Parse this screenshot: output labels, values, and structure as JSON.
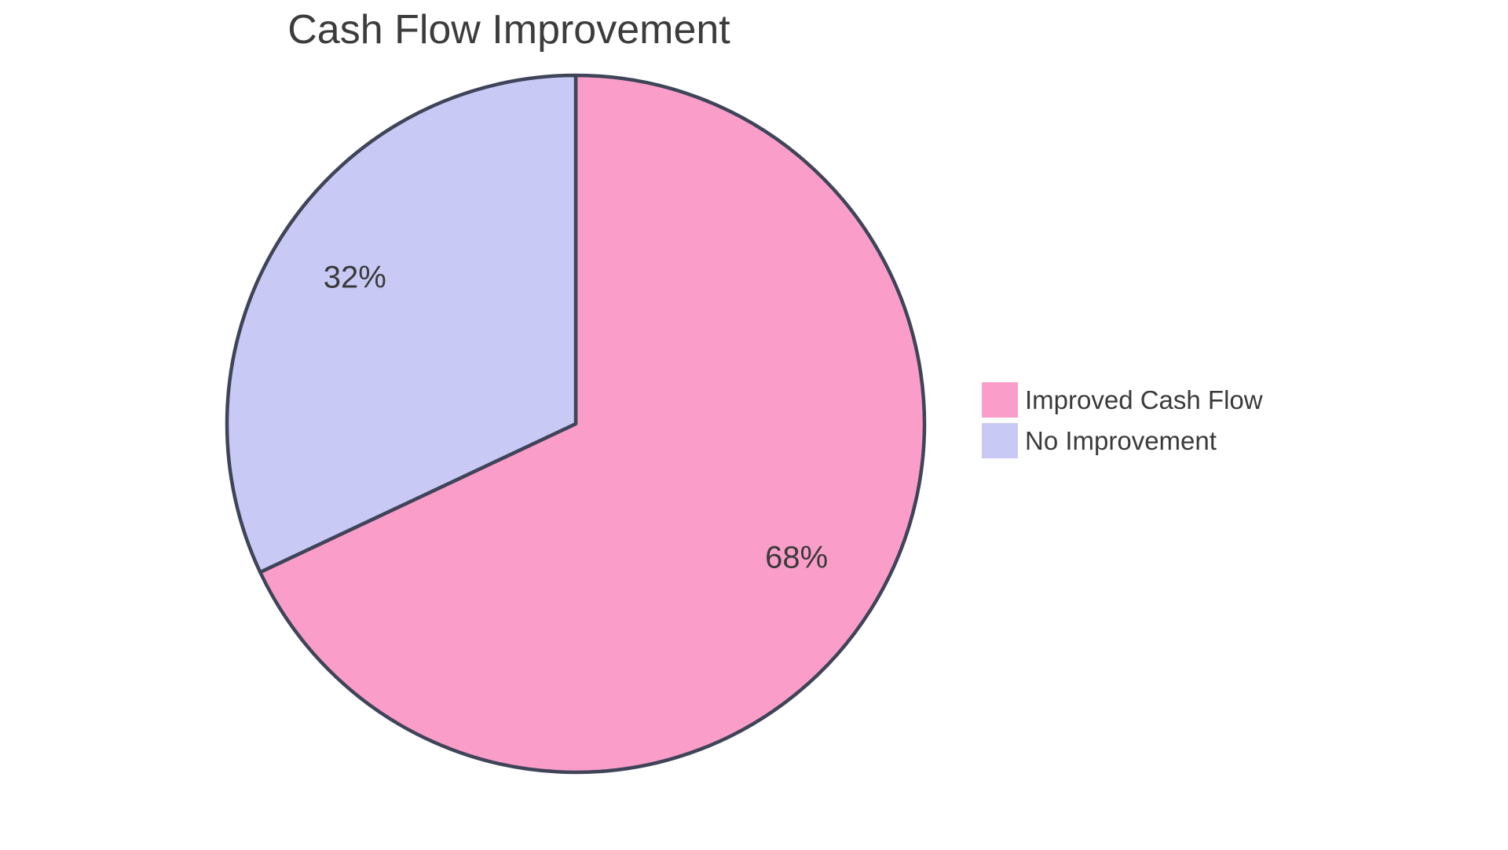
{
  "title": "Cash Flow Improvement",
  "chart_data": {
    "type": "pie",
    "title": "Cash Flow Improvement",
    "slices": [
      {
        "label": "Improved Cash Flow",
        "value": 68,
        "pct_label": "68%",
        "color": "#FA9EC9"
      },
      {
        "label": "No Improvement",
        "value": 32,
        "pct_label": "32%",
        "color": "#C9C9F6"
      }
    ],
    "start_angle_deg": 0,
    "direction": "clockwise",
    "stroke_color": "#3F4458",
    "stroke_width": 4.5,
    "label_color": "#3A3A3A",
    "label_radius_fraction": 0.75,
    "legend_position": "right",
    "background": "#FFFFFF"
  },
  "legend": {
    "items": [
      {
        "label": "Improved Cash Flow"
      },
      {
        "label": "No Improvement"
      }
    ]
  }
}
